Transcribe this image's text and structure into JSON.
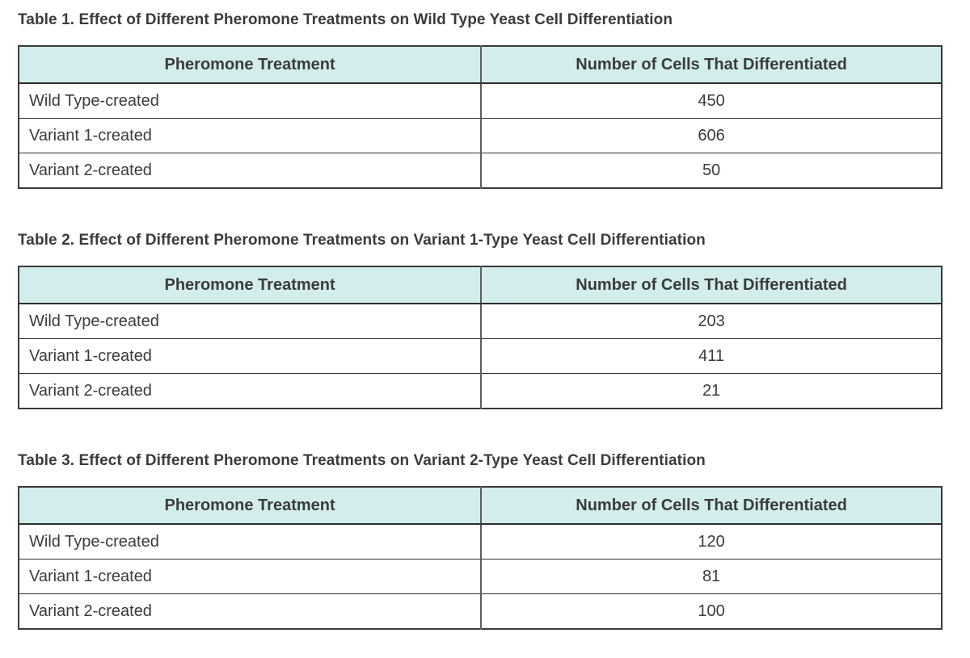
{
  "colors": {
    "header_bg": "#d2edec",
    "border_dark": "#3a3a3a",
    "border_line": "#2e2e2e",
    "divider_gray": "#5e5e5e",
    "text": "#3b3b3b"
  },
  "tables": [
    {
      "title": "Table 1. Effect of Different Pheromone Treatments on Wild Type Yeast Cell Differentiation",
      "columns": [
        "Pheromone Treatment",
        "Number of Cells That Differentiated"
      ],
      "rows": [
        {
          "treatment": "Wild Type-created",
          "count": "450"
        },
        {
          "treatment": "Variant 1-created",
          "count": "606"
        },
        {
          "treatment": "Variant 2-created",
          "count": "50"
        }
      ]
    },
    {
      "title": "Table 2. Effect of Different Pheromone Treatments on Variant 1-Type Yeast Cell Differentiation",
      "columns": [
        "Pheromone Treatment",
        "Number of Cells That Differentiated"
      ],
      "rows": [
        {
          "treatment": "Wild Type-created",
          "count": "203"
        },
        {
          "treatment": "Variant 1-created",
          "count": "411"
        },
        {
          "treatment": "Variant 2-created",
          "count": "21"
        }
      ]
    },
    {
      "title": "Table 3. Effect of Different Pheromone Treatments on Variant 2-Type Yeast Cell Differentiation",
      "columns": [
        "Pheromone Treatment",
        "Number of Cells That Differentiated"
      ],
      "rows": [
        {
          "treatment": "Wild Type-created",
          "count": "120"
        },
        {
          "treatment": "Variant 1-created",
          "count": "81"
        },
        {
          "treatment": "Variant 2-created",
          "count": "100"
        }
      ]
    }
  ]
}
